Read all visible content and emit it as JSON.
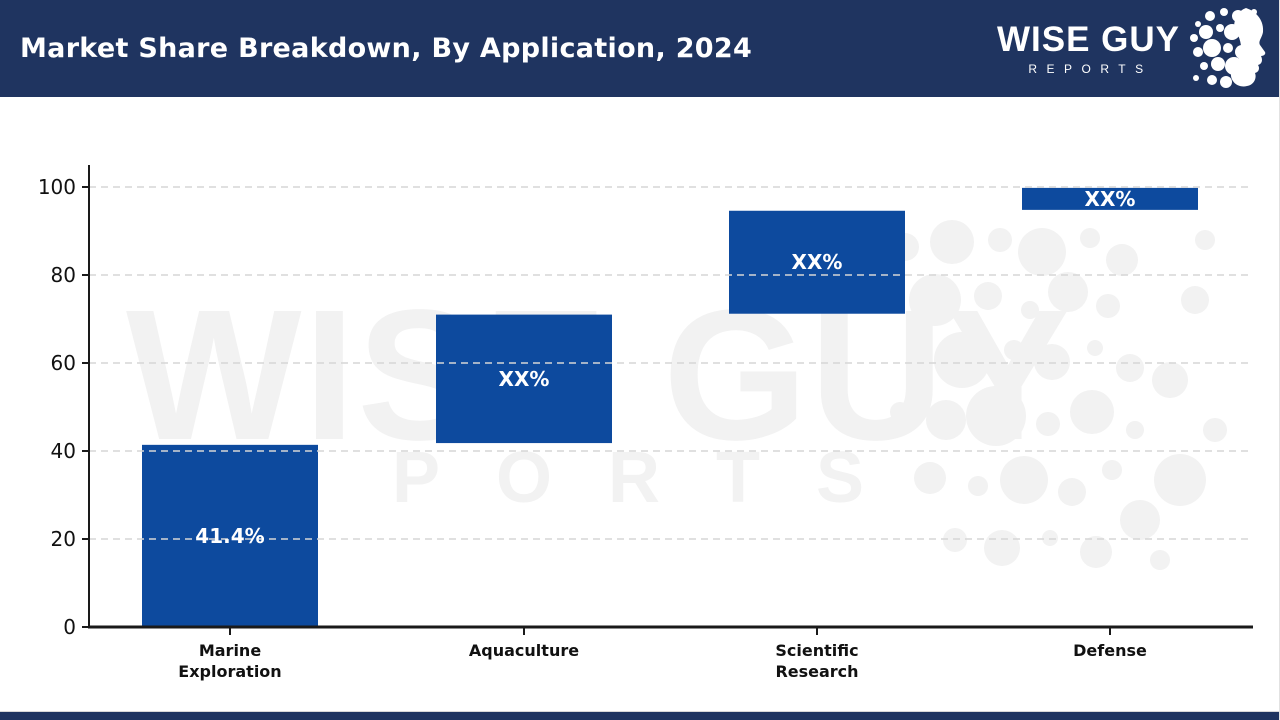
{
  "header": {
    "title": "Market Share Breakdown, By Application, 2024",
    "logo": {
      "line1": "WISE GUY",
      "line2": "REPORTS"
    }
  },
  "watermark": {
    "line1": "WISE GUY",
    "line2": "PORTS"
  },
  "colors": {
    "header_bg": "#1f3460",
    "footer_bg": "#1f3460",
    "bar": "#0d4a9e",
    "bar_label": "#ffffff",
    "grid": "#d6d6d6",
    "axis": "#1a1a1a",
    "tick_label": "#111111",
    "watermark": "#f2f2f2"
  },
  "chart_data": {
    "type": "bar",
    "subtype": "waterfall",
    "title": "Market Share Breakdown, By Application, 2024",
    "xlabel": "",
    "ylabel": "",
    "categories": [
      "Marine Exploration",
      "Aquaculture",
      "Scientific Research",
      "Defense"
    ],
    "segments": [
      {
        "category": "Marine Exploration",
        "start": 0,
        "end": 41.4,
        "label": "41.4%"
      },
      {
        "category": "Aquaculture",
        "start": 41.8,
        "end": 71.0,
        "label": "XX%"
      },
      {
        "category": "Scientific Research",
        "start": 71.2,
        "end": 94.6,
        "label": "XX%"
      },
      {
        "category": "Defense",
        "start": 94.8,
        "end": 99.8,
        "label": "XX%"
      }
    ],
    "yticks": [
      0,
      20,
      40,
      60,
      80,
      100
    ],
    "ylim": [
      0,
      105
    ],
    "grid": true,
    "grid_style": "dashed",
    "legend": false
  }
}
